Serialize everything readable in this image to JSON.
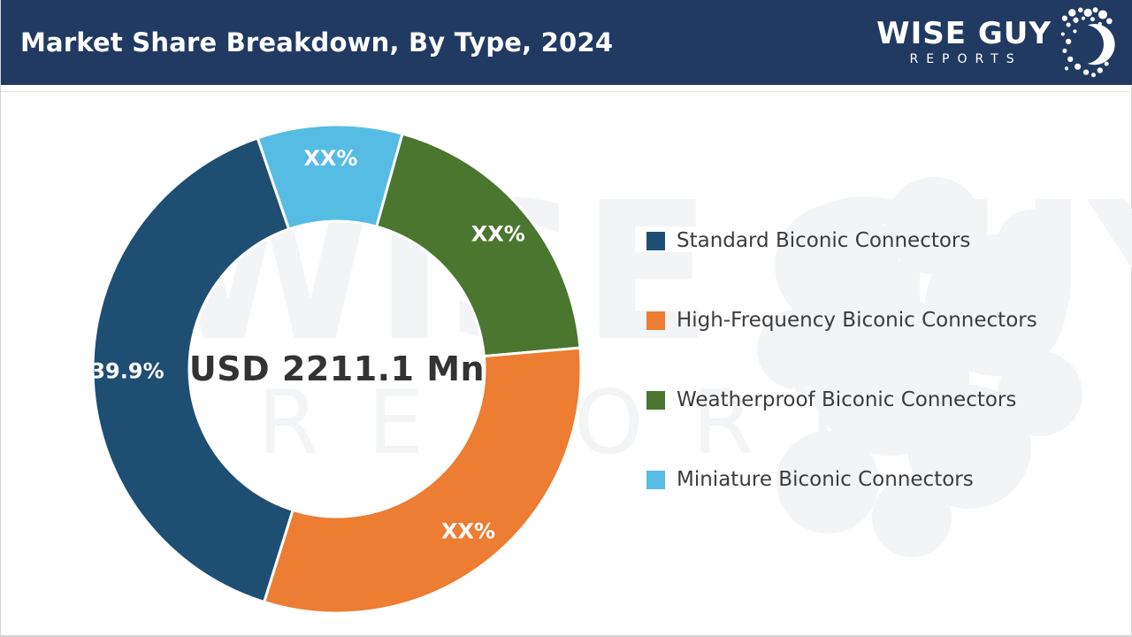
{
  "header": {
    "title": "Market Share Breakdown, By Type, 2024",
    "background_color": "#203A62"
  },
  "logo": {
    "name": "WISE GUY",
    "subtitle": "REPORTS"
  },
  "watermark": {
    "line1": "WISE GUY",
    "line2": "REPORTS"
  },
  "chart_data": {
    "type": "pie",
    "subtype": "donut",
    "title": "Market Share Breakdown, By Type, 2024",
    "center_label": "USD 2211.1 Mn",
    "start_angle_deg": -19,
    "direction": "clockwise",
    "legend_position": "right",
    "segments": [
      {
        "label": "Standard Biconic Connectors",
        "display_value": "39.9%",
        "value_pct": 39.9,
        "color": "#1F4E73"
      },
      {
        "label": "High-Frequency Biconic Connectors",
        "display_value": "XX%",
        "value_pct": 31.2,
        "color": "#EC7D32"
      },
      {
        "label": "Weatherproof Biconic Connectors",
        "display_value": "XX%",
        "value_pct": 19.3,
        "color": "#4A762F"
      },
      {
        "label": "Miniature Biconic Connectors",
        "display_value": "XX%",
        "value_pct": 9.6,
        "color": "#56BCE4"
      }
    ]
  }
}
